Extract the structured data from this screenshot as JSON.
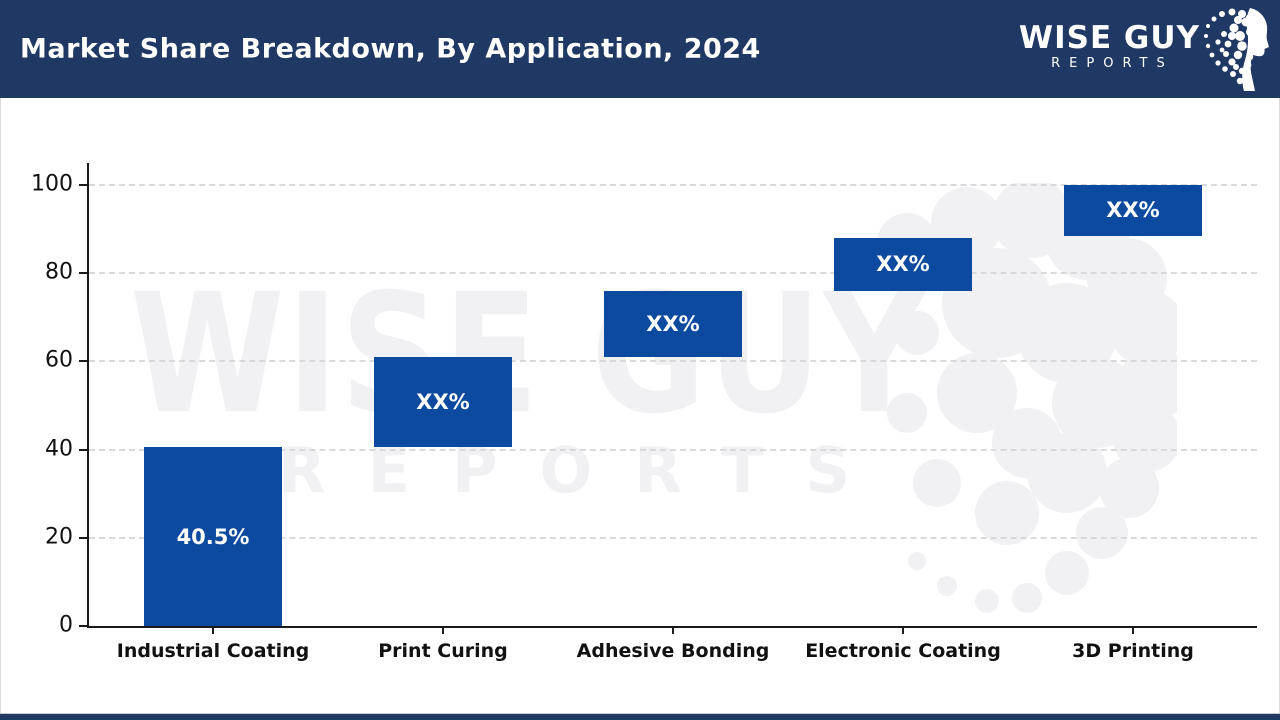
{
  "header": {
    "title": "Market Share Breakdown, By Application, 2024",
    "logo": {
      "wordmark": "WISE GUY",
      "subtext": "REPORTS"
    }
  },
  "watermark": {
    "line1": "WISE GUY",
    "line2": "REPORTS"
  },
  "chart_data": {
    "type": "bar",
    "variant": "waterfall",
    "title": "Market Share Breakdown, By Application, 2024",
    "categories": [
      "Industrial Coating",
      "Print Curing",
      "Adhesive Bonding",
      "Electronic Coating",
      "3D Printing"
    ],
    "segments": [
      {
        "category": "Industrial Coating",
        "start": 0,
        "end": 40.5,
        "label": "40.5%"
      },
      {
        "category": "Print Curing",
        "start": 40.5,
        "end": 61,
        "label": "XX%"
      },
      {
        "category": "Adhesive Bonding",
        "start": 61,
        "end": 76,
        "label": "XX%"
      },
      {
        "category": "Electronic Coating",
        "start": 76,
        "end": 88,
        "label": "XX%"
      },
      {
        "category": "3D Printing",
        "start": 88.5,
        "end": 100,
        "label": "XX%"
      }
    ],
    "y_ticks": [
      0,
      20,
      40,
      60,
      80,
      100
    ],
    "ylim": [
      0,
      105
    ],
    "xlabel": "",
    "ylabel": "",
    "legend": "none",
    "grid": {
      "horizontal": true,
      "style": "dashed"
    },
    "bar_color": "#0b4a9e",
    "bar_label_color": "#ffffff",
    "axis_color": "#1a1a1a",
    "grid_color": "#d9d9d9"
  },
  "colors": {
    "header_bg": "#1f3864",
    "footer_bg": "#1f3864",
    "background": "#ffffff",
    "watermark": "#f1f1f4"
  }
}
